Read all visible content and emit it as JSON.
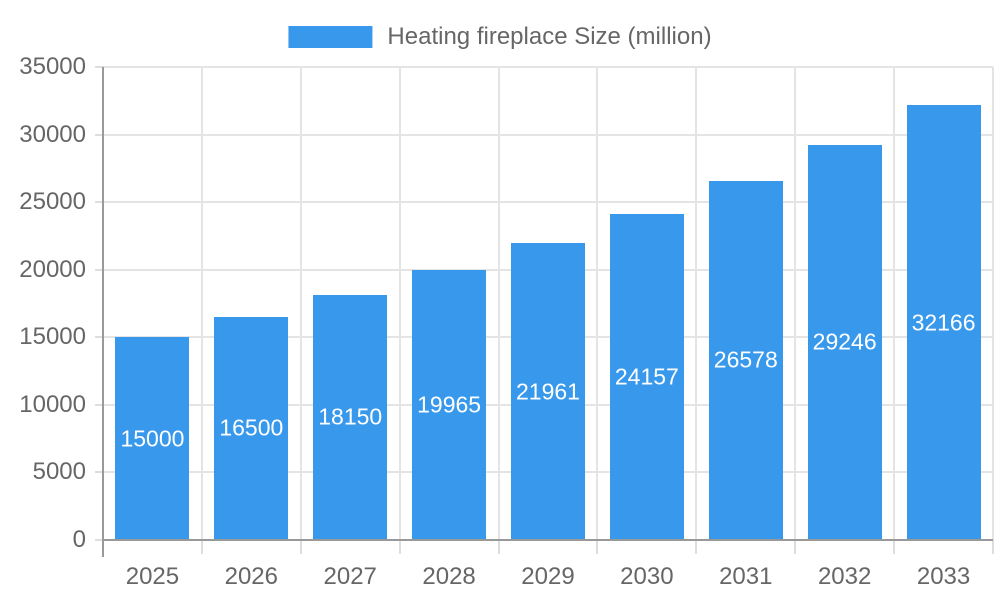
{
  "legend": {
    "label": "Heating fireplace Size (million)"
  },
  "chart_data": {
    "type": "bar",
    "title": "Heating fireplace Size (million)",
    "categories": [
      "2025",
      "2026",
      "2027",
      "2028",
      "2029",
      "2030",
      "2031",
      "2032",
      "2033"
    ],
    "values": [
      15000,
      16500,
      18150,
      19965,
      21961,
      24157,
      26578,
      29246,
      32166
    ],
    "xlabel": "",
    "ylabel": "",
    "ylim": [
      0,
      35000
    ],
    "yticks": [
      0,
      5000,
      10000,
      15000,
      20000,
      25000,
      30000,
      35000
    ],
    "grid": true,
    "legend_position": "top-center",
    "value_label_position": "inside-center",
    "bar_color": "#3899EC",
    "value_label_color": "#FFFFFF"
  },
  "colors": {
    "bar": "#3899EC",
    "grid": "#E4E4E4",
    "axis": "#999999",
    "tick": "#DDDDDD",
    "text": "#666666",
    "background": "#FFFFFF"
  }
}
